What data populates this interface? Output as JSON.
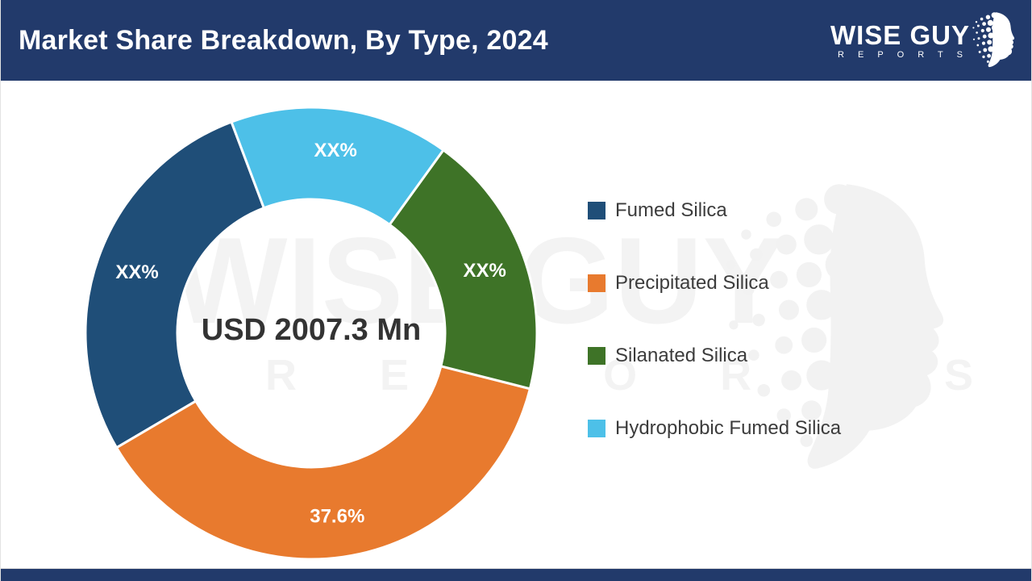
{
  "header": {
    "title": "Market Share Breakdown, By Type, 2024",
    "logo_line1": "WISE GUY",
    "logo_line2": "R E P O R T S"
  },
  "watermark": {
    "line1": "WISE GUY",
    "line2": "R E P O R T S"
  },
  "chart_data": {
    "type": "pie",
    "subtype": "donut",
    "title": "Market Share Breakdown, By Type, 2024",
    "center_label": "USD 2007.3 Mn",
    "start_angle_deg": 110.7,
    "direction": "counterclockwise",
    "legend_position": "right",
    "segments": [
      {
        "label": "Fumed Silica",
        "value_display": "XX%",
        "pct_estimated": 27.7,
        "color": "#1F4E78"
      },
      {
        "label": "Precipitated Silica",
        "value_display": "37.6%",
        "pct_estimated": 37.6,
        "color": "#E87A2E"
      },
      {
        "label": "Silanated Silica",
        "value_display": "XX%",
        "pct_estimated": 19.0,
        "color": "#3E7327"
      },
      {
        "label": "Hydrophobic Fumed Silica",
        "value_display": "XX%",
        "pct_estimated": 15.7,
        "color": "#4DC0E8"
      }
    ]
  },
  "colors": {
    "header_bg": "#223A6B",
    "footer_bg": "#223A6B",
    "slice_gap": "#FFFFFF",
    "center_text": "#333333",
    "legend_text": "#3C3C3C",
    "watermark": "#F3F3F3"
  }
}
